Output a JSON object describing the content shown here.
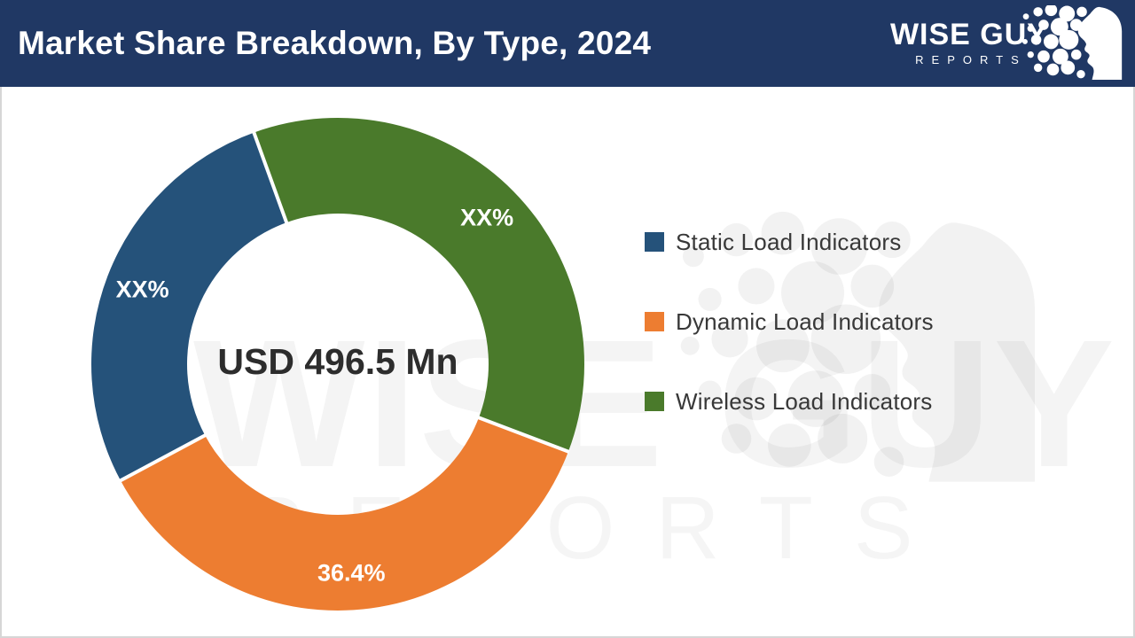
{
  "header": {
    "title": "Market Share Breakdown, By Type, 2024",
    "logo": {
      "line1": "WISE GUY",
      "line2": "REPORTS"
    }
  },
  "watermark": {
    "line1": "WISE GUY",
    "line2": "REPORTS"
  },
  "chart_data": {
    "type": "pie",
    "subtype": "donut",
    "title": "Market Share Breakdown, By Type, 2024",
    "center_label": "USD 496.5 Mn",
    "start_angle_deg": 109.9,
    "direction": "clockwise",
    "hole_radius_ratio": 0.61,
    "slices": [
      {
        "label": "Wireless Load Indicators",
        "pct": 36.3,
        "pct_label": "XX%",
        "color": "#4A7A2B"
      },
      {
        "label": "Dynamic Load Indicators",
        "pct": 36.4,
        "pct_label": "36.4%",
        "color": "#ED7D31"
      },
      {
        "label": "Static Load Indicators",
        "pct": 27.3,
        "pct_label": "XX%",
        "color": "#25527A"
      }
    ],
    "legend": {
      "position": "right",
      "items": [
        {
          "label": "Static Load Indicators",
          "color": "#25527A"
        },
        {
          "label": "Dynamic Load Indicators",
          "color": "#ED7D31"
        },
        {
          "label": "Wireless Load Indicators",
          "color": "#4A7A2B"
        }
      ]
    }
  },
  "colors": {
    "header_bg": "#203864",
    "page_border": "#D6D6D6",
    "center_text": "#2D2D2D",
    "legend_text": "#383838",
    "slice_label_text": "#FFFFFF"
  }
}
